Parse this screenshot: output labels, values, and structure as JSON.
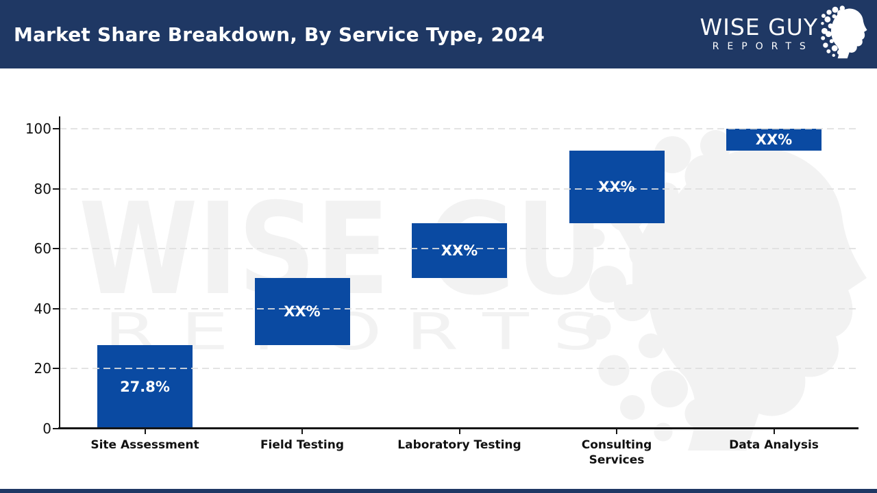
{
  "header": {
    "title": "Market Share Breakdown, By Service Type, 2024",
    "logo": {
      "line1": "WISE GUY",
      "line2": "REPORTS"
    }
  },
  "watermark": {
    "line1": "WISE GUY",
    "line2": "R E P O R T S"
  },
  "footer": {},
  "chart_data": {
    "type": "bar",
    "subtype": "waterfall",
    "title": "Market Share Breakdown, By Service Type, 2024",
    "categories": [
      "Site Assessment",
      "Field Testing",
      "Laboratory Testing",
      "Consulting\nServices",
      "Data Analysis"
    ],
    "segments": [
      {
        "category": "Site Assessment",
        "start": 0,
        "end": 27.8,
        "label": "27.8%"
      },
      {
        "category": "Field Testing",
        "start": 27.8,
        "end": 50.2,
        "label": "XX%"
      },
      {
        "category": "Laboratory Testing",
        "start": 50.2,
        "end": 68.6,
        "label": "XX%"
      },
      {
        "category": "Consulting Services",
        "start": 68.6,
        "end": 92.6,
        "label": "XX%"
      },
      {
        "category": "Data Analysis",
        "start": 92.6,
        "end": 100,
        "label": "XX%"
      }
    ],
    "values": [
      27.8,
      22.4,
      18.4,
      24.0,
      7.4
    ],
    "bar_labels": [
      "27.8%",
      "XX%",
      "XX%",
      "XX%",
      "XX%"
    ],
    "ylim": [
      0,
      100
    ],
    "yticks": [
      0,
      20,
      40,
      60,
      80,
      100
    ],
    "xlabel": "",
    "ylabel": "",
    "grid": "horizontal-dashed",
    "legend": "none",
    "bar_color": "#0a4aa2",
    "accent_navy": "#1f3864"
  }
}
